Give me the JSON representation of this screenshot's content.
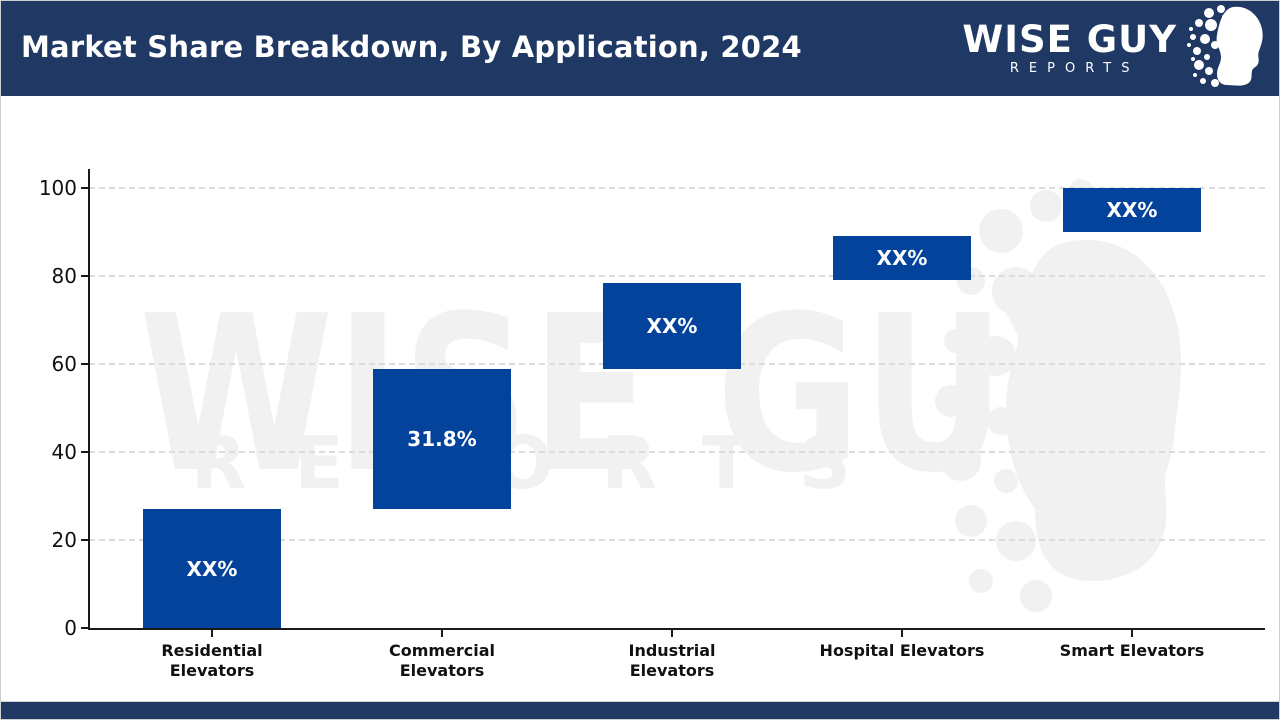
{
  "header": {
    "title": "Market Share Breakdown, By Application, 2024",
    "logo": {
      "line1": "WISE GUY",
      "line2": "REPORTS"
    }
  },
  "watermark": {
    "line1": "WISE GUY",
    "line2": "REPORTS"
  },
  "chart_data": {
    "type": "bar",
    "subtype": "floating-waterfall",
    "title": "Market Share Breakdown, By Application, 2024",
    "categories": [
      "Residential Elevators",
      "Commercial Elevators",
      "Industrial Elevators",
      "Hospital Elevators",
      "Smart Elevators"
    ],
    "category_lines": [
      [
        "Residential",
        "Elevators"
      ],
      [
        "Commercial",
        "Elevators"
      ],
      [
        "Industrial",
        "Elevators"
      ],
      [
        "Hospital Elevators"
      ],
      [
        "Smart Elevators"
      ]
    ],
    "bars": [
      {
        "category": "Residential Elevators",
        "label": "XX%",
        "start": 0,
        "end": 27
      },
      {
        "category": "Commercial Elevators",
        "label": "31.8%",
        "start": 27,
        "end": 58.8
      },
      {
        "category": "Industrial Elevators",
        "label": "XX%",
        "start": 58.8,
        "end": 78.5
      },
      {
        "category": "Hospital Elevators",
        "label": "XX%",
        "start": 79,
        "end": 89
      },
      {
        "category": "Smart Elevators",
        "label": "XX%",
        "start": 90,
        "end": 100
      }
    ],
    "y_ticks": [
      0,
      20,
      40,
      60,
      80,
      100
    ],
    "ylim": [
      0,
      104
    ],
    "xlabel": "",
    "ylabel": "",
    "grid": "horizontal-dashed",
    "legend": "none"
  },
  "colors": {
    "header_bg": "#1f3864",
    "footer_bg": "#1f3864",
    "bar": "#04439c",
    "grid": "#dcdcdc",
    "axis": "#1a1a1a",
    "watermark": "#f1f1f1",
    "border": "#cfcfcf"
  }
}
